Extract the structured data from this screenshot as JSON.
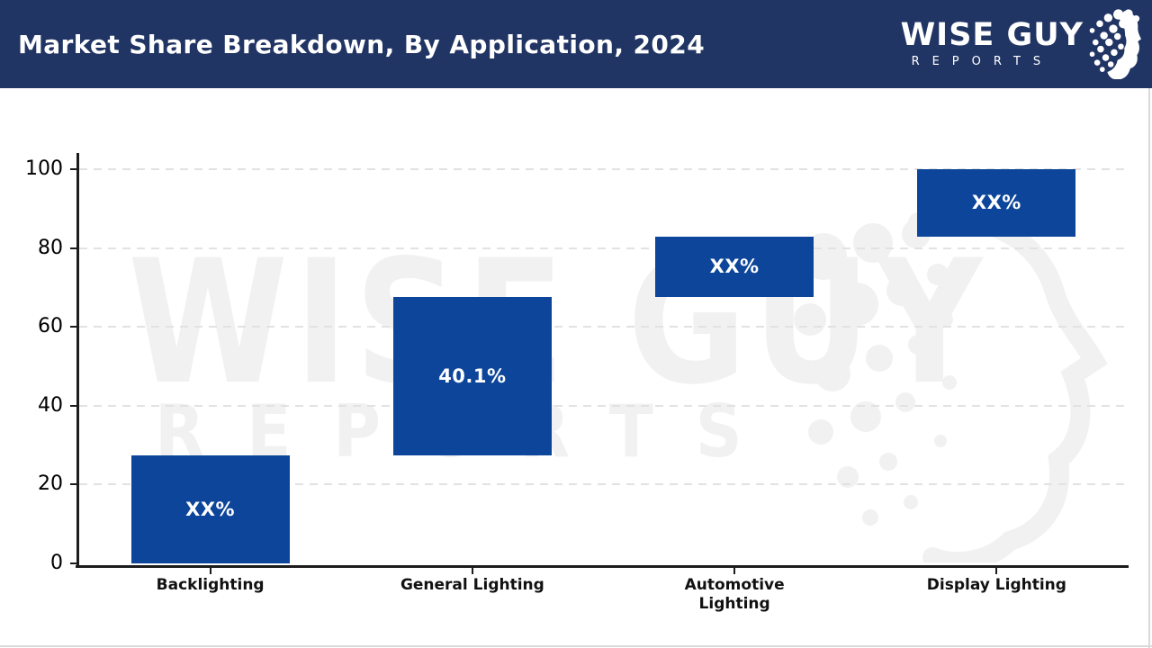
{
  "header": {
    "title": "Market Share Breakdown, By Application, 2024",
    "logo": {
      "title": "WISE GUY",
      "subtitle": "REPORTS"
    }
  },
  "watermark": {
    "title": "WISE GUY",
    "subtitle": "REPORTS"
  },
  "colors": {
    "header_bg": "#213564",
    "bar": "#0c4599",
    "bar_label": "#ffffff",
    "axis": "#1c1c1c",
    "grid": "#e2e2e2",
    "tick_label": "#000000",
    "watermark": "#f1f1f1",
    "logo_text": "#ffffff"
  },
  "chart_data": {
    "type": "bar",
    "variant": "floating-waterfall",
    "title": "Market Share Breakdown, By Application, 2024",
    "categories": [
      "Backlighting",
      "General Lighting",
      "Automotive Lighting",
      "Display Lighting"
    ],
    "bars": [
      {
        "category": "Backlighting",
        "display": "Backlighting",
        "start": 0,
        "end": 27.5,
        "label": "XX%"
      },
      {
        "category": "General Lighting",
        "display": "General Lighting",
        "start": 27.5,
        "end": 67.6,
        "value": 40.1,
        "label": "40.1%"
      },
      {
        "category": "Automotive Lighting",
        "display": "Automotive\nLighting",
        "start": 67.6,
        "end": 82.9,
        "label": "XX%"
      },
      {
        "category": "Display Lighting",
        "display": "Display Lighting",
        "start": 82.9,
        "end": 100,
        "label": "XX%"
      }
    ],
    "y_ticks": [
      0,
      20,
      40,
      60,
      80,
      100
    ],
    "ylim": [
      0,
      100
    ],
    "xlabel": "",
    "ylabel": "",
    "grid": "horizontal-dashed",
    "legend": "none"
  }
}
